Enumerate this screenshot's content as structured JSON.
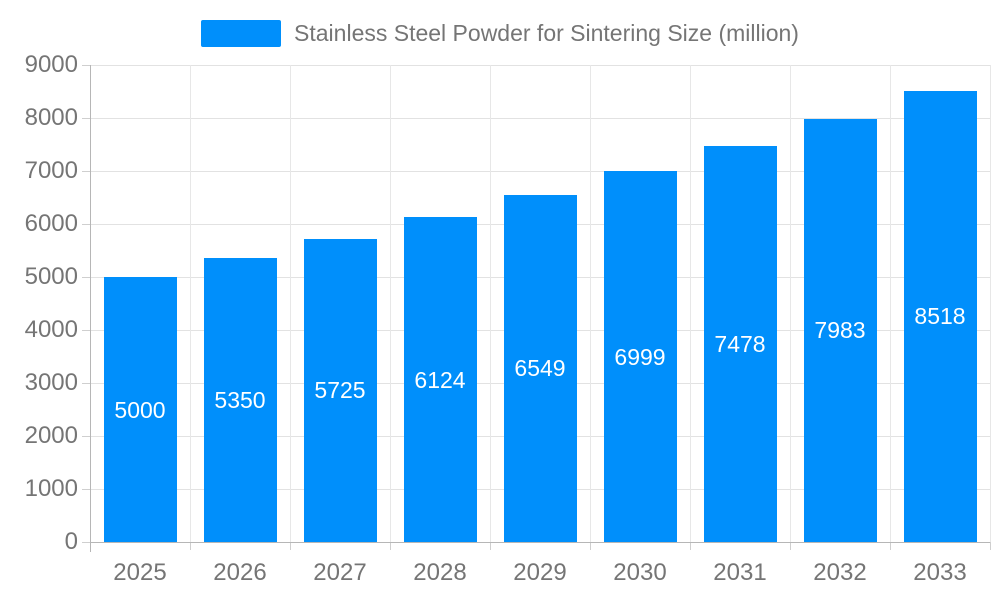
{
  "chart_data": {
    "type": "bar",
    "title": "Stainless Steel Powder for Sintering Size (million)",
    "categories": [
      "2025",
      "2026",
      "2027",
      "2028",
      "2029",
      "2030",
      "2031",
      "2032",
      "2033"
    ],
    "values": [
      5000,
      5350,
      5725,
      6124,
      6549,
      6999,
      7478,
      7983,
      8518
    ],
    "xlabel": "",
    "ylabel": "",
    "ylim": [
      0,
      9000
    ],
    "ytick_step": 1000,
    "ytick_labels": [
      "0",
      "1000",
      "2000",
      "3000",
      "4000",
      "5000",
      "6000",
      "7000",
      "8000",
      "9000"
    ],
    "grid": true,
    "legend_position": "top",
    "bar_color": "#008FFB",
    "bar_label_color": "#ffffff",
    "axis_text_color": "#757575",
    "grid_color": "#e7e7e7",
    "axis_line_color": "#b6b6b6"
  }
}
